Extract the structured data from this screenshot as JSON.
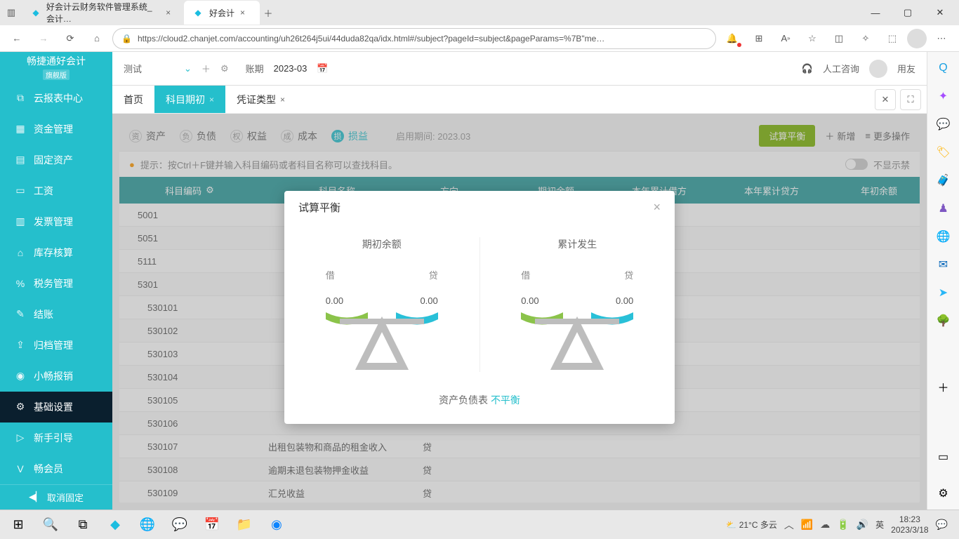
{
  "browser": {
    "tabs": [
      {
        "title": "好会计云财务软件管理系统_会计…",
        "active": false
      },
      {
        "title": "好会计",
        "active": true
      }
    ],
    "url": "https://cloud2.chanjet.com/accounting/uh26t264j5ui/44duda82qa/idx.html#/subject?pageId=subject&pageParams=%7B\"me…"
  },
  "app": {
    "logo": "畅捷通好会计",
    "logo_sub": "旗舰版",
    "sidebar": [
      {
        "icon": "⧉",
        "label": "云报表中心"
      },
      {
        "icon": "▦",
        "label": "资金管理"
      },
      {
        "icon": "▤",
        "label": "固定资产"
      },
      {
        "icon": "▭",
        "label": "工资"
      },
      {
        "icon": "▥",
        "label": "发票管理"
      },
      {
        "icon": "⌂",
        "label": "库存核算"
      },
      {
        "icon": "%",
        "label": "税务管理"
      },
      {
        "icon": "✎",
        "label": "结账"
      },
      {
        "icon": "⇪",
        "label": "归档管理"
      },
      {
        "icon": "◉",
        "label": "小畅报销"
      },
      {
        "icon": "⚙",
        "label": "基础设置",
        "active": true
      },
      {
        "icon": "▷",
        "label": "新手引导"
      },
      {
        "icon": "V",
        "label": "畅会员"
      }
    ],
    "side_collapse": "取消固定",
    "company": "测试",
    "period_label": "账期",
    "period_value": "2023-03",
    "consult": "人工咨询",
    "username": "用友",
    "page_tabs": [
      {
        "label": "首页",
        "closable": false
      },
      {
        "label": "科目期初",
        "closable": true,
        "active": true
      },
      {
        "label": "凭证类型",
        "closable": true
      }
    ],
    "filters": [
      {
        "icon": "资",
        "label": "资产"
      },
      {
        "icon": "负",
        "label": "负债"
      },
      {
        "icon": "权",
        "label": "权益"
      },
      {
        "icon": "成",
        "label": "成本"
      },
      {
        "icon": "损",
        "label": "损益",
        "active": true
      }
    ],
    "enable_period_label": "启用期间:",
    "enable_period": "2023.03",
    "btn_trial": "试算平衡",
    "btn_new": "新增",
    "btn_more": "更多操作",
    "hint": "提示：按Ctrl＋F键并输入科目编码或者科目名称可以查找科目。",
    "toggle_label": "不显示禁",
    "columns": [
      "科目编码",
      "科目名称",
      "方向",
      "期初余额",
      "本年累计借方",
      "本年累计贷方",
      "年初余额"
    ],
    "rows": [
      {
        "code": "5001"
      },
      {
        "code": "5051"
      },
      {
        "code": "5111"
      },
      {
        "code": "5301"
      },
      {
        "code": "530101",
        "sub": true
      },
      {
        "code": "530102",
        "sub": true
      },
      {
        "code": "530103",
        "sub": true
      },
      {
        "code": "530104",
        "sub": true
      },
      {
        "code": "530105",
        "sub": true
      },
      {
        "code": "530106",
        "sub": true
      },
      {
        "code": "530107",
        "sub": true,
        "name": "出租包装物和商品的租金收入",
        "dir": "贷"
      },
      {
        "code": "530108",
        "sub": true,
        "name": "逾期未退包装物押金收益",
        "dir": "贷"
      },
      {
        "code": "530109",
        "sub": true,
        "name": "汇兑收益",
        "dir": "贷"
      }
    ]
  },
  "modal": {
    "title": "试算平衡",
    "col1_title": "期初余额",
    "col2_title": "累计发生",
    "debit_label": "借",
    "credit_label": "贷",
    "debit_value": "0.00",
    "credit_value": "0.00",
    "foot_prefix": "资产负债表 ",
    "foot_link": "不平衡",
    "colors": {
      "green": "#8bc34a",
      "blue": "#29c0d8",
      "gray": "#bdbdbd"
    }
  },
  "taskbar": {
    "weather": "21°C 多云",
    "ime": "英",
    "time": "18:23",
    "date": "2023/3/18"
  }
}
